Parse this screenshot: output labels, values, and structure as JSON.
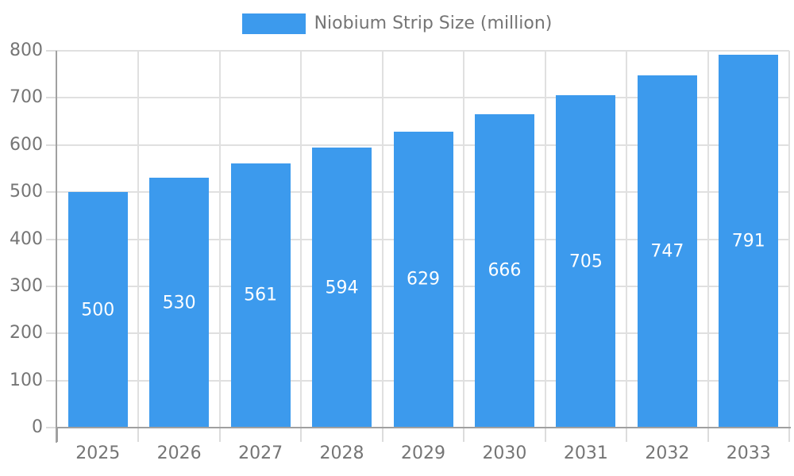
{
  "legend": {
    "label": "Niobium Strip Size (million)"
  },
  "colors": {
    "bar": "#3C9AED",
    "grid": "#E0E0E0",
    "tick": "#DCDCDC",
    "axis": "#A0A0A0",
    "axis_label": "#757575",
    "bar_label": "#FFFFFF",
    "background": "#FFFFFF"
  },
  "chart_data": {
    "type": "bar",
    "title": "",
    "categories": [
      "2025",
      "2026",
      "2027",
      "2028",
      "2029",
      "2030",
      "2031",
      "2032",
      "2033"
    ],
    "series": [
      {
        "name": "Niobium Strip Size (million)",
        "values": [
          500,
          530,
          561,
          594,
          629,
          666,
          705,
          747,
          791
        ]
      }
    ],
    "xlabel": "",
    "ylabel": "",
    "ylim": [
      0,
      800
    ],
    "yticks": [
      0,
      100,
      200,
      300,
      400,
      500,
      600,
      700,
      800
    ],
    "grid": true,
    "legend_position": "top-center",
    "bar_value_labels": "inside-middle"
  }
}
